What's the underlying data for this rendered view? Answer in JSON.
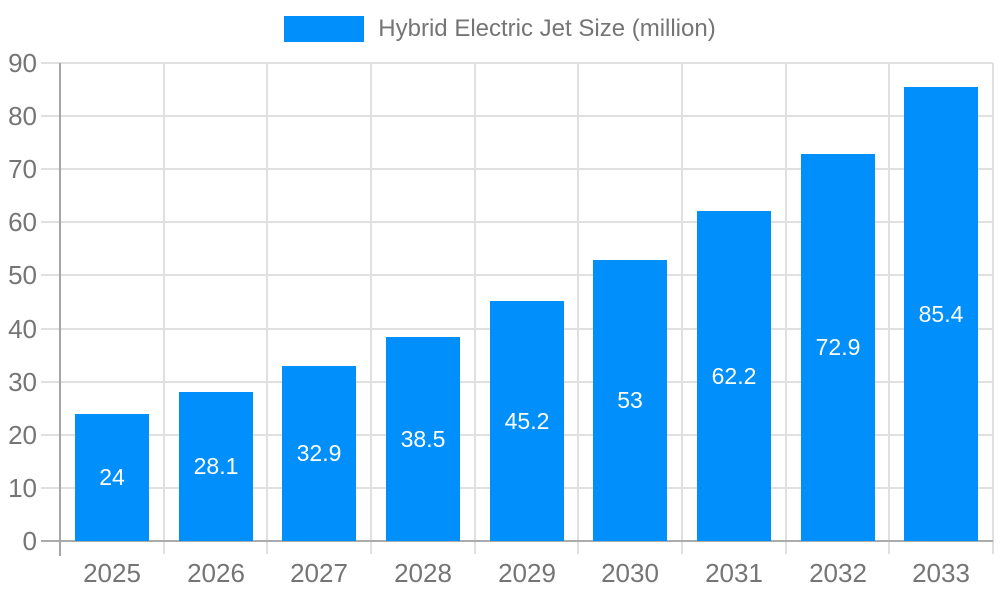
{
  "legend": {
    "label": "Hybrid Electric Jet Size (million)",
    "swatch_icon": "series-color-swatch"
  },
  "colors": {
    "bar": "#008FFB",
    "grid": "#e0e0e0",
    "axis_line": "#a6a6a6",
    "baseline": "#ababab",
    "axis_text": "#757575",
    "value_label": "#ffffff",
    "background": "#ffffff"
  },
  "chart_data": {
    "type": "bar",
    "title": "Hybrid Electric Jet Size (million)",
    "series": [
      {
        "name": "Hybrid Electric Jet Size (million)",
        "values": [
          24,
          28.1,
          32.9,
          38.5,
          45.2,
          53,
          62.2,
          72.9,
          85.4
        ]
      }
    ],
    "categories": [
      "2025",
      "2026",
      "2027",
      "2028",
      "2029",
      "2030",
      "2031",
      "2032",
      "2033"
    ],
    "xlabel": "",
    "ylabel": "",
    "ylim": [
      0,
      90
    ],
    "ytick_step": 10,
    "yticks": [
      0,
      10,
      20,
      30,
      40,
      50,
      60,
      70,
      80,
      90
    ],
    "grid": true,
    "legend_position": "top-center",
    "value_labels_position": "inside-center"
  }
}
